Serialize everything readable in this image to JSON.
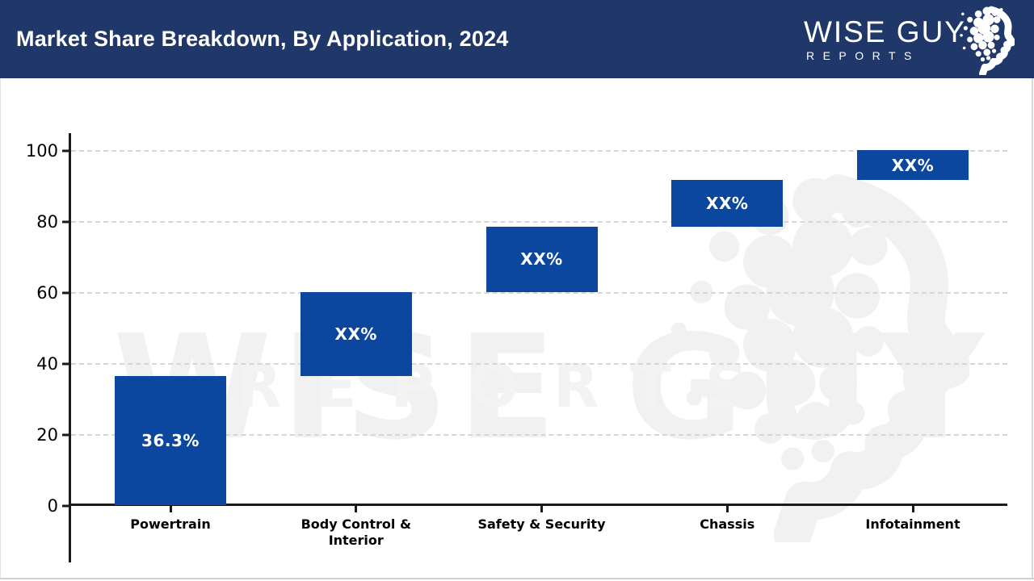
{
  "page": {
    "background": "#ffffff",
    "frame_color": "#cfcfcf"
  },
  "header": {
    "background": "#20376a",
    "title": "Market Share Breakdown, By Application, 2024",
    "logo": {
      "wordmark": "WISE GUY",
      "subtext": "REPORTS"
    }
  },
  "watermark": {
    "wordmark": "WISE GUY",
    "subtext": "REPORTS"
  },
  "chart_data": {
    "type": "bar",
    "variant": "waterfall",
    "title": "Market Share Breakdown, By Application, 2024",
    "xlabel": "",
    "ylabel": "",
    "ylim": [
      0,
      105
    ],
    "yticks": [
      0,
      20,
      40,
      60,
      80,
      100
    ],
    "grid": "horizontal-dashed",
    "legend_position": "none",
    "bar_color": "#0b479e",
    "value_label_color": "#ffffff",
    "categories": [
      "Powertrain",
      "Body Control & Interior",
      "Safety & Security",
      "Chassis",
      "Infotainment"
    ],
    "segments": [
      {
        "category": "Powertrain",
        "start": 0,
        "end": 36.3,
        "label": "36.3%"
      },
      {
        "category": "Body Control & Interior",
        "start": 36.3,
        "end": 60.0,
        "label": "XX%"
      },
      {
        "category": "Safety & Security",
        "start": 60.0,
        "end": 78.5,
        "label": "XX%"
      },
      {
        "category": "Chassis",
        "start": 78.5,
        "end": 91.5,
        "label": "XX%"
      },
      {
        "category": "Infotainment",
        "start": 91.5,
        "end": 100.0,
        "label": "XX%"
      }
    ]
  }
}
